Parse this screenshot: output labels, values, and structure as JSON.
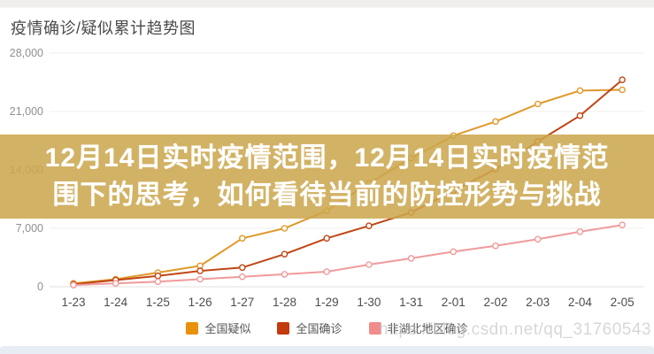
{
  "page": {
    "title": "疫情确诊/疑似累计趋势图",
    "watermark": "https://blog.csdn.net/qq_31760543"
  },
  "overlay": {
    "text": "12月14日实时疫情范围，12月14日实时疫情范围下的思考，如何看待当前的防控形势与挑战",
    "lines": [
      "12月14日实时疫情范围，12月14日实时疫情范",
      "围下的思考，如何看待当前的防控形势与挑战"
    ],
    "background": "#CBA64D",
    "text_color": "#FFFFFF"
  },
  "chart_data": {
    "type": "line",
    "title": "疫情确诊/疑似累计趋势图",
    "categories": [
      "1-23",
      "1-24",
      "1-25",
      "1-26",
      "1-27",
      "1-28",
      "1-29",
      "1-30",
      "1-31",
      "2-01",
      "2-02",
      "2-03",
      "2-04",
      "2-05"
    ],
    "series": [
      {
        "name": "全国疑似",
        "color": "#E0992A",
        "values": [
          400,
          900,
          1700,
          2500,
          5800,
          7000,
          9100,
          12400,
          15400,
          18100,
          19800,
          21900,
          23500,
          23600
        ]
      },
      {
        "name": "全国确诊",
        "color": "#C04615",
        "values": [
          300,
          800,
          1300,
          1900,
          2300,
          3900,
          5800,
          7300,
          8900,
          11500,
          14100,
          17400,
          20500,
          24800
        ]
      },
      {
        "name": "非湖北地区确诊",
        "color": "#F09A9C",
        "values": [
          200,
          400,
          600,
          900,
          1200,
          1500,
          1800,
          2650,
          3400,
          4200,
          4900,
          5700,
          6600,
          7400
        ]
      }
    ],
    "ylim": [
      0,
      28000
    ],
    "y_ticks": [
      "0",
      "7,000",
      "14,000",
      "21,000",
      "28,000"
    ],
    "xlabel": "",
    "ylabel": "",
    "grid": true,
    "legend_position": "bottom",
    "marker": "hollow-circle"
  }
}
